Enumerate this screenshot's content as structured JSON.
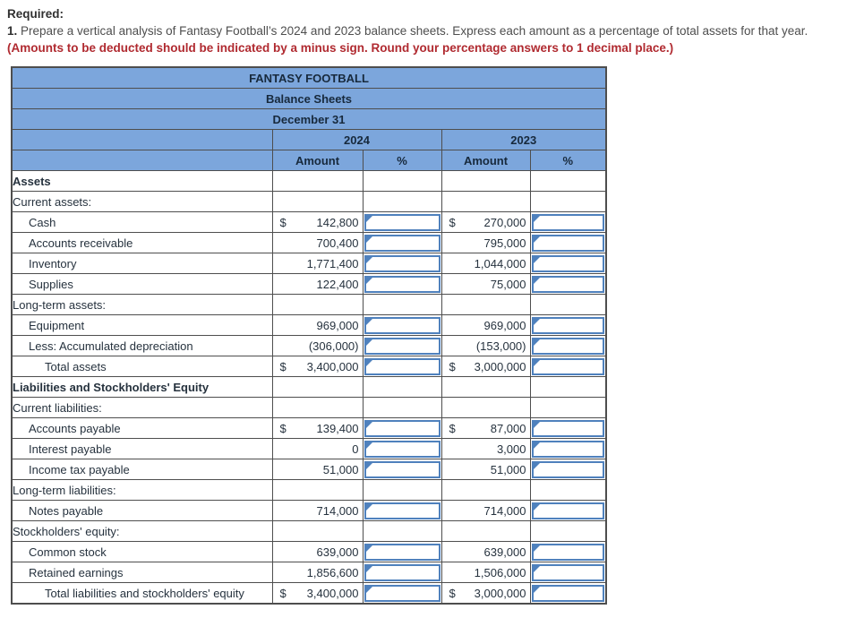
{
  "instructions": {
    "required_label": "Required:",
    "item_number": "1.",
    "text_before": " Prepare a vertical analysis of Fantasy Football’s 2024 and 2023 balance sheets. Express each amount as a percentage of total assets for that year. ",
    "red_note": "(Amounts to be deducted should be indicated by a minus sign. Round your percentage answers to 1 decimal place.)"
  },
  "table": {
    "title_lines": [
      "FANTASY FOOTBALL",
      "Balance Sheets",
      "December 31"
    ],
    "year_headers": [
      "2024",
      "2023"
    ],
    "col_headers": [
      "Amount",
      "%",
      "Amount",
      "%"
    ],
    "rows": [
      {
        "label": "Assets",
        "type": "header"
      },
      {
        "label": "Current assets:",
        "type": "section"
      },
      {
        "label": "Cash",
        "type": "item",
        "d24": "$",
        "a24": "142,800",
        "d23": "$",
        "a23": "270,000",
        "input": true,
        "pct24": "",
        "pct23": ""
      },
      {
        "label": "Accounts receivable",
        "type": "item",
        "a24": "700,400",
        "a23": "795,000",
        "input": true,
        "pct24": "",
        "pct23": ""
      },
      {
        "label": "Inventory",
        "type": "item",
        "a24": "1,771,400",
        "a23": "1,044,000",
        "input": true,
        "pct24": "",
        "pct23": ""
      },
      {
        "label": "Supplies",
        "type": "item",
        "a24": "122,400",
        "a23": "75,000",
        "input": true,
        "pct24": "",
        "pct23": ""
      },
      {
        "label": "Long-term assets:",
        "type": "section"
      },
      {
        "label": "Equipment",
        "type": "item",
        "a24": "969,000",
        "a23": "969,000",
        "input": true,
        "pct24": "",
        "pct23": ""
      },
      {
        "label": "Less: Accumulated depreciation",
        "type": "item",
        "a24": "(306,000)",
        "a23": "(153,000)",
        "input": true,
        "pct24": "",
        "pct23": ""
      },
      {
        "label": "Total assets",
        "type": "total",
        "d24": "$",
        "a24": "3,400,000",
        "d23": "$",
        "a23": "3,000,000",
        "input": true,
        "pct24": "",
        "pct23": ""
      },
      {
        "label": "Liabilities and Stockholders' Equity",
        "type": "header"
      },
      {
        "label": "Current liabilities:",
        "type": "section"
      },
      {
        "label": "Accounts payable",
        "type": "item",
        "d24": "$",
        "a24": "139,400",
        "d23": "$",
        "a23": "87,000",
        "input": true,
        "pct24": "",
        "pct23": ""
      },
      {
        "label": "Interest payable",
        "type": "item",
        "a24": "0",
        "a23": "3,000",
        "input": true,
        "pct24": "",
        "pct23": ""
      },
      {
        "label": "Income tax payable",
        "type": "item",
        "a24": "51,000",
        "a23": "51,000",
        "input": true,
        "pct24": "",
        "pct23": ""
      },
      {
        "label": "Long-term liabilities:",
        "type": "section"
      },
      {
        "label": "Notes payable",
        "type": "item",
        "a24": "714,000",
        "a23": "714,000",
        "input": true,
        "pct24": "",
        "pct23": ""
      },
      {
        "label": "Stockholders' equity:",
        "type": "section"
      },
      {
        "label": "Common stock",
        "type": "item",
        "a24": "639,000",
        "a23": "639,000",
        "input": true,
        "pct24": "",
        "pct23": ""
      },
      {
        "label": "Retained earnings",
        "type": "item",
        "a24": "1,856,600",
        "a23": "1,506,000",
        "input": true,
        "pct24": "",
        "pct23": ""
      },
      {
        "label": "Total liabilities and stockholders' equity",
        "type": "total",
        "d24": "$",
        "a24": "3,400,000",
        "d23": "$",
        "a23": "3,000,000",
        "input": true,
        "pct24": "",
        "pct23": ""
      }
    ]
  },
  "colors": {
    "header_blue": "#7CA6DC",
    "input_border_blue": "#4F81BD",
    "note_red": "#B02A30",
    "grid_border": "#4E4E4E"
  }
}
